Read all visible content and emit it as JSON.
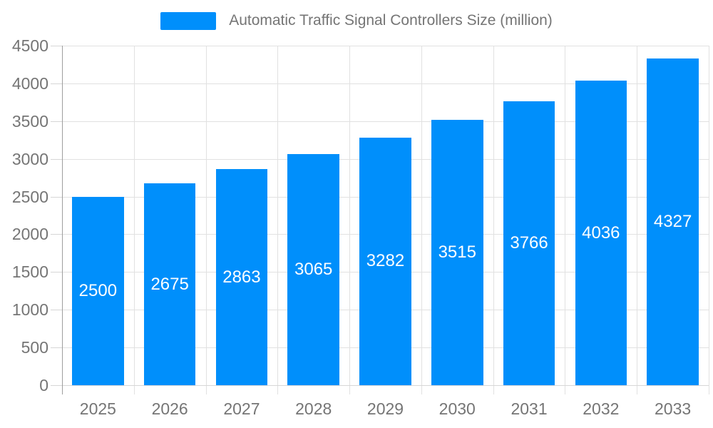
{
  "chart_data": {
    "type": "bar",
    "title": "Automatic Traffic Signal Controllers Size (million)",
    "categories": [
      "2025",
      "2026",
      "2027",
      "2028",
      "2029",
      "2030",
      "2031",
      "2032",
      "2033"
    ],
    "values": [
      2500,
      2675,
      2863,
      3065,
      3282,
      3515,
      3766,
      4036,
      4327
    ],
    "xlabel": "",
    "ylabel": "",
    "ylim": [
      0,
      4500
    ],
    "ytick_step": 500,
    "grid": true,
    "legend_position": "top",
    "colors": {
      "bar": "#008FFB",
      "bar_label": "#FFFFFF",
      "axis_text": "#757575",
      "gridline": "#E1E1E1",
      "tick": "#D6D6D6",
      "axis_line": "#9E9E9E"
    }
  }
}
